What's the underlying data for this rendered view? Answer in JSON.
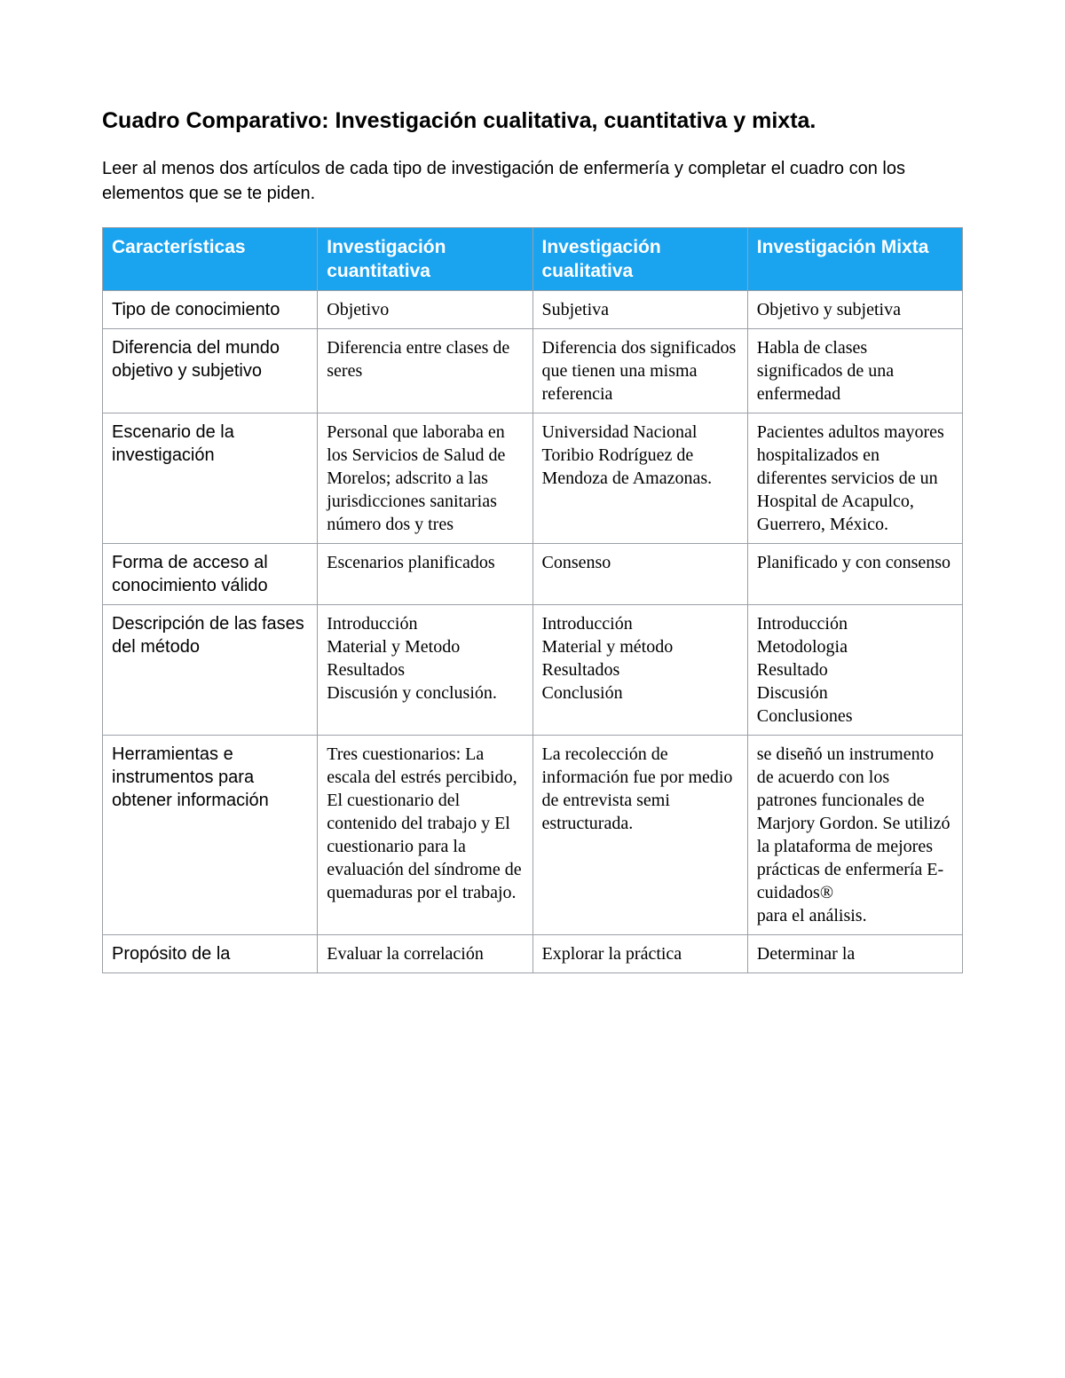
{
  "title": "Cuadro Comparativo: Investigación cualitativa, cuantitativa y mixta.",
  "intro": "Leer al menos dos artículos de cada tipo de investigación de enfermería y completar el cuadro con los elementos que se te piden.",
  "table": {
    "header_bg": "#1aa3ef",
    "header_fg": "#ffffff",
    "border_color": "#9aa0a6",
    "columns": [
      "Características",
      "Investigación cuantitativa",
      "Investigación cualitativa",
      "Investigación Mixta"
    ],
    "rows": [
      {
        "label": "Tipo de conocimiento",
        "cuant": "Objetivo",
        "cuali": "Subjetiva",
        "mixta": "Objetivo y subjetiva"
      },
      {
        "label": "Diferencia del mundo objetivo y subjetivo",
        "cuant": "Diferencia entre clases de seres",
        "cuali": "Diferencia dos significados que tienen una misma referencia",
        "mixta": "Habla de clases significados de una enfermedad"
      },
      {
        "label": "Escenario de la investigación",
        "cuant": "Personal que laboraba en los Servicios de Salud de Morelos; adscrito a las jurisdicciones sanitarias número dos y tres",
        "cuali": "Universidad Nacional Toribio Rodríguez de Mendoza de Amazonas.",
        "mixta": "Pacientes adultos mayores hospitalizados en diferentes servicios de un Hospital de Acapulco, Guerrero, México."
      },
      {
        "label": "Forma de acceso al conocimiento válido",
        "cuant": "Escenarios planificados",
        "cuali": "Consenso",
        "mixta": "Planificado y con consenso"
      },
      {
        "label": "Descripción de las fases del método",
        "cuant": "Introducción\nMaterial y Metodo\nResultados\nDiscusión y conclusión.",
        "cuali": "Introducción\nMaterial y método\nResultados\nConclusión",
        "mixta": "Introducción\nMetodologia\nResultado\nDiscusión\nConclusiones"
      },
      {
        "label": "Herramientas e instrumentos para obtener información",
        "cuant": "Tres cuestionarios: La escala del estrés percibido, El cuestionario del contenido del trabajo y El cuestionario para la evaluación del síndrome de quemaduras por el trabajo.",
        "cuali": "La recolección de información fue por medio de entrevista semi estructurada.",
        "mixta": "se diseñó un instrumento de acuerdo con los patrones funcionales de Marjory Gordon. Se utilizó la plataforma de mejores prácticas de enfermería E-cuidados®\npara el análisis."
      },
      {
        "label": "Propósito de la",
        "cuant": "Evaluar la correlación",
        "cuali": "Explorar la práctica",
        "mixta": "Determinar la"
      }
    ]
  }
}
